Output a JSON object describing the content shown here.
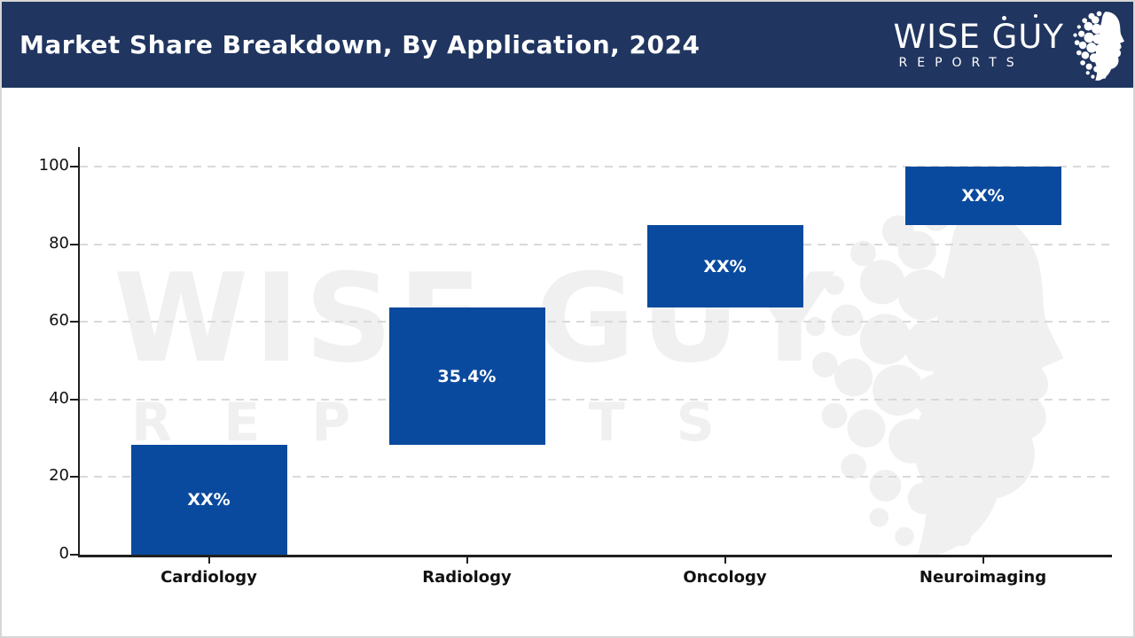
{
  "header": {
    "title": "Market Share Breakdown, By Application, 2024",
    "logo": {
      "line1": "WISE GUY",
      "line2": "REPORTS"
    }
  },
  "watermark": {
    "line1": "WISE GUY",
    "line2": "REPORTS"
  },
  "colors": {
    "header_bg": "#20355F",
    "bar": "#0A4A9E",
    "bar_label_text": "#FFFFFF",
    "axis": "#1F1F1F",
    "gridline": "#D9D9D9",
    "watermark": "#F0F0F0",
    "title_text": "#FFFFFF"
  },
  "chart_data": {
    "type": "bar",
    "subtype": "waterfall-floating-bars",
    "title": "Market Share Breakdown, By Application, 2024",
    "categories": [
      "Cardiology",
      "Radiology",
      "Oncology",
      "Neuroimaging"
    ],
    "segments": [
      {
        "category": "Cardiology",
        "start": 0,
        "end": 28.2,
        "label": "XX%"
      },
      {
        "category": "Radiology",
        "start": 28.2,
        "end": 63.6,
        "label": "35.4%"
      },
      {
        "category": "Oncology",
        "start": 63.6,
        "end": 85.0,
        "label": "XX%"
      },
      {
        "category": "Neuroimaging",
        "start": 85.0,
        "end": 100.0,
        "label": "XX%"
      }
    ],
    "y_ticks": [
      0,
      20,
      40,
      60,
      80,
      100
    ],
    "ylim": [
      0,
      105
    ],
    "xlabel": "",
    "ylabel": "",
    "grid": "horizontal-dashed",
    "legend": "none"
  }
}
